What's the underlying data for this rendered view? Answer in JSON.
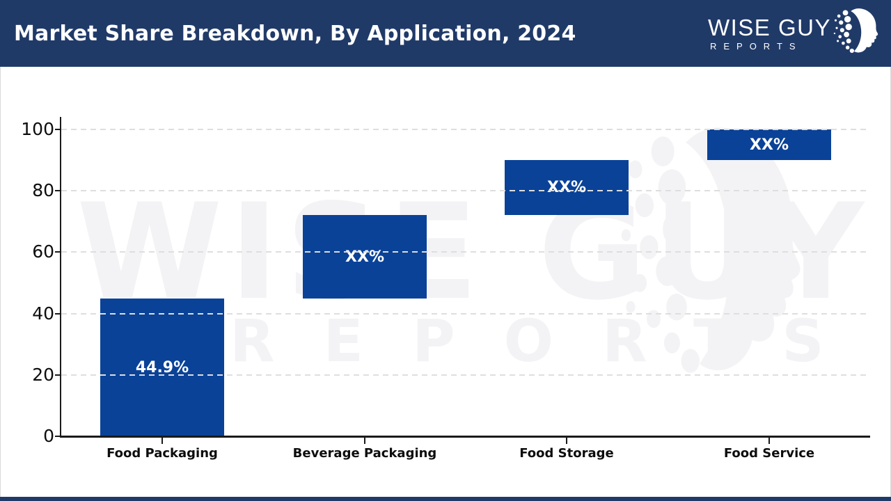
{
  "header": {
    "title": "Market Share Breakdown, By Application, 2024",
    "logo": {
      "line1": "WISE GUY",
      "line2": "REPORTS"
    }
  },
  "watermark": {
    "line1": "WISE GUY",
    "line2": "REPORTS"
  },
  "chart_data": {
    "type": "bar",
    "variant": "waterfall",
    "title": "Market Share Breakdown, By Application, 2024",
    "categories": [
      "Food Packaging",
      "Beverage Packaging",
      "Food Storage",
      "Food Service"
    ],
    "segments": [
      {
        "category": "Food Packaging",
        "start": 0,
        "end": 44.9,
        "label": "44.9%"
      },
      {
        "category": "Beverage Packaging",
        "start": 44.9,
        "end": 72,
        "label": "XX%"
      },
      {
        "category": "Food Storage",
        "start": 72,
        "end": 90,
        "label": "XX%"
      },
      {
        "category": "Food Service",
        "start": 90,
        "end": 100,
        "label": "XX%"
      }
    ],
    "ylim": [
      0,
      100
    ],
    "yticks": [
      0,
      20,
      40,
      60,
      80,
      100
    ],
    "xlabel": "",
    "ylabel": "",
    "grid": "dashed-horizontal",
    "legend": "none",
    "colors": {
      "bar": "#0a4298",
      "bar_label": "#ffffff",
      "header_bg": "#203a68",
      "grid": "#dedede",
      "axis": "#1a1a1a",
      "tick_text": "#0d0d0d",
      "watermark": "#f3f3f5"
    }
  }
}
